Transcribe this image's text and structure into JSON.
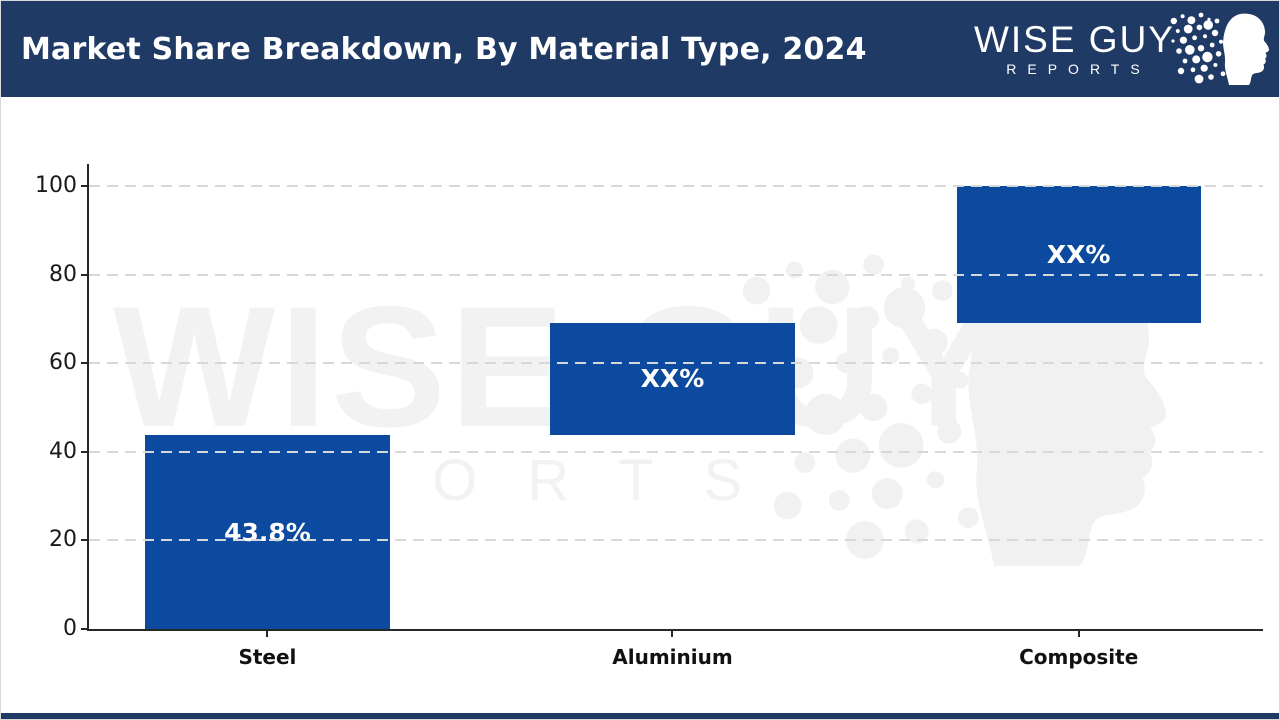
{
  "header": {
    "title": "Market Share Breakdown, By Material Type, 2024",
    "brand": {
      "line1": "WISE GUY",
      "line2": "REPORTS",
      "icon": "dotted-face-profile"
    }
  },
  "watermark": {
    "line1": "WISE GUY",
    "line2": "REPORTS",
    "figure": "dotted-face-profile"
  },
  "chart_data": {
    "type": "bar",
    "subtype": "waterfall-floating-bars",
    "title": "Market Share Breakdown, By Material Type, 2024",
    "categories": [
      "Steel",
      "Aluminium",
      "Composite"
    ],
    "series": [
      {
        "name": "Market share (%)",
        "segments": [
          {
            "category": "Steel",
            "start": 0,
            "end": 43.8,
            "label": "43.8%"
          },
          {
            "category": "Aluminium",
            "start": 43.8,
            "end": 69.2,
            "label": "XX%"
          },
          {
            "category": "Composite",
            "start": 69.2,
            "end": 100,
            "label": "XX%"
          }
        ]
      }
    ],
    "xlabel": "",
    "ylabel": "",
    "yticks": [
      0,
      20,
      40,
      60,
      80,
      100
    ],
    "ylim": [
      0,
      105
    ],
    "grid": {
      "horizontal": true,
      "style": "dashed",
      "color": "#d8d8d8"
    },
    "legend": "none",
    "colors": {
      "bar": "#0b4a9e",
      "bar_label": "#ffffff",
      "axis": "#262626",
      "tick_label": "#1a1a1a",
      "header": "#203a66",
      "watermark": "#f2f2f2"
    },
    "layout": {
      "bar_width_pct": 20.8,
      "bar_centers_pct": [
        15.2,
        49.7,
        84.3
      ]
    }
  }
}
